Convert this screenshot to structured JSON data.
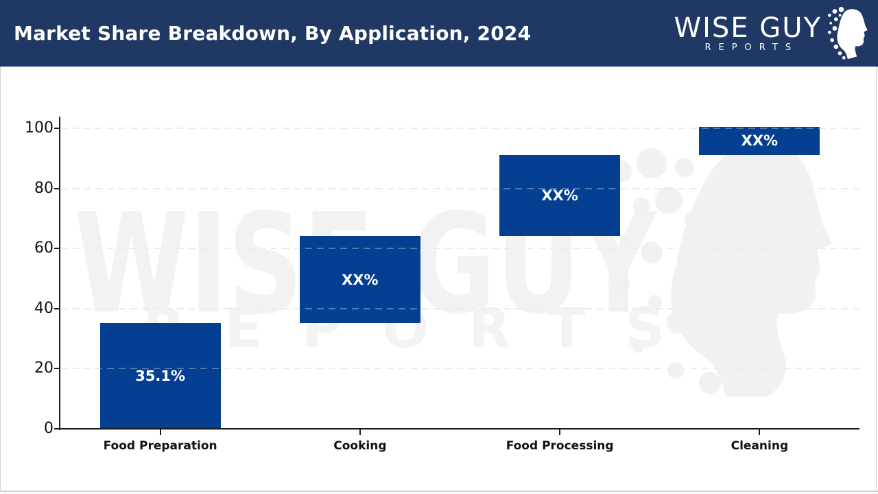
{
  "header": {
    "title": "Market Share Breakdown, By Application, 2024",
    "bg_color": "#203864",
    "logo": {
      "line1": "WISE GUY",
      "line2": "REPORTS"
    }
  },
  "watermark": {
    "line1": "WISE GUY",
    "line2": "REPORTS"
  },
  "chart_data": {
    "type": "bar",
    "subtype": "waterfall",
    "title": "Market Share Breakdown, By Application, 2024",
    "categories": [
      "Food Preparation",
      "Cooking",
      "Food Processing",
      "Cleaning"
    ],
    "segments": [
      {
        "category": "Food Preparation",
        "start": 0,
        "end": 35.1,
        "label": "35.1%"
      },
      {
        "category": "Cooking",
        "start": 35.1,
        "end": 64.2,
        "label": "XX%"
      },
      {
        "category": "Food Processing",
        "start": 64.2,
        "end": 91.2,
        "label": "XX%"
      },
      {
        "category": "Cleaning",
        "start": 91.2,
        "end": 100.4,
        "label": "XX%"
      }
    ],
    "y_ticks": [
      0,
      20,
      40,
      60,
      80,
      100
    ],
    "ylim": [
      0,
      104
    ],
    "xlabel": "",
    "ylabel": "",
    "grid": "dashed-horizontal",
    "legend": "none",
    "bar_color": "#043f92",
    "bar_label_color": "#ffffff",
    "axis_color": "#1a1a1a"
  }
}
